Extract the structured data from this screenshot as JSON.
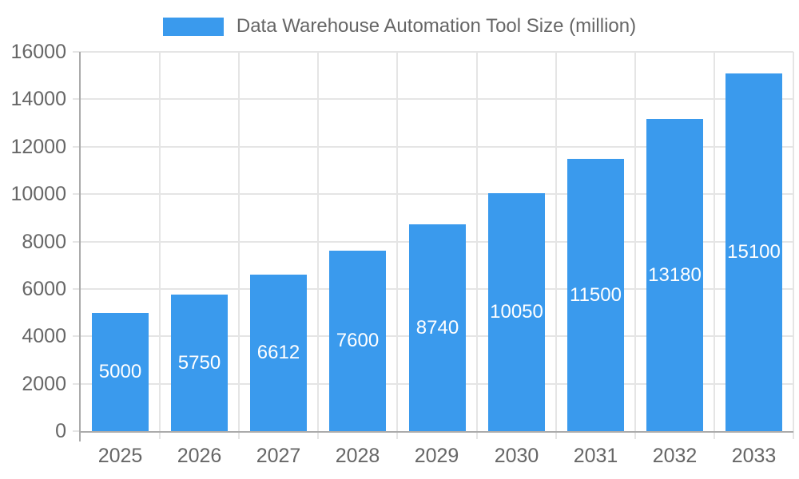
{
  "legend": {
    "label": "Data Warehouse Automation Tool Size (million)"
  },
  "colors": {
    "bar": "#3A9AED",
    "grid": "#E5E5E5",
    "axis": "#ABABAB",
    "tick_label": "#666666",
    "legend_text": "#666666",
    "value_label": "#FFFFFF",
    "background": "#FFFFFF"
  },
  "chart_data": {
    "type": "bar",
    "title": "Data Warehouse Automation Tool Size (million)",
    "categories": [
      "2025",
      "2026",
      "2027",
      "2028",
      "2029",
      "2030",
      "2031",
      "2032",
      "2033"
    ],
    "values": [
      5000,
      5750,
      6612,
      7600,
      8740,
      10050,
      11500,
      13180,
      15100
    ],
    "xlabel": "",
    "ylabel": "",
    "ylim": [
      0,
      16000
    ],
    "ytick_step": 2000,
    "yticks": [
      0,
      2000,
      4000,
      6000,
      8000,
      10000,
      12000,
      14000,
      16000
    ],
    "grid": true,
    "legend_position": "top",
    "value_labels": "inside-center"
  }
}
